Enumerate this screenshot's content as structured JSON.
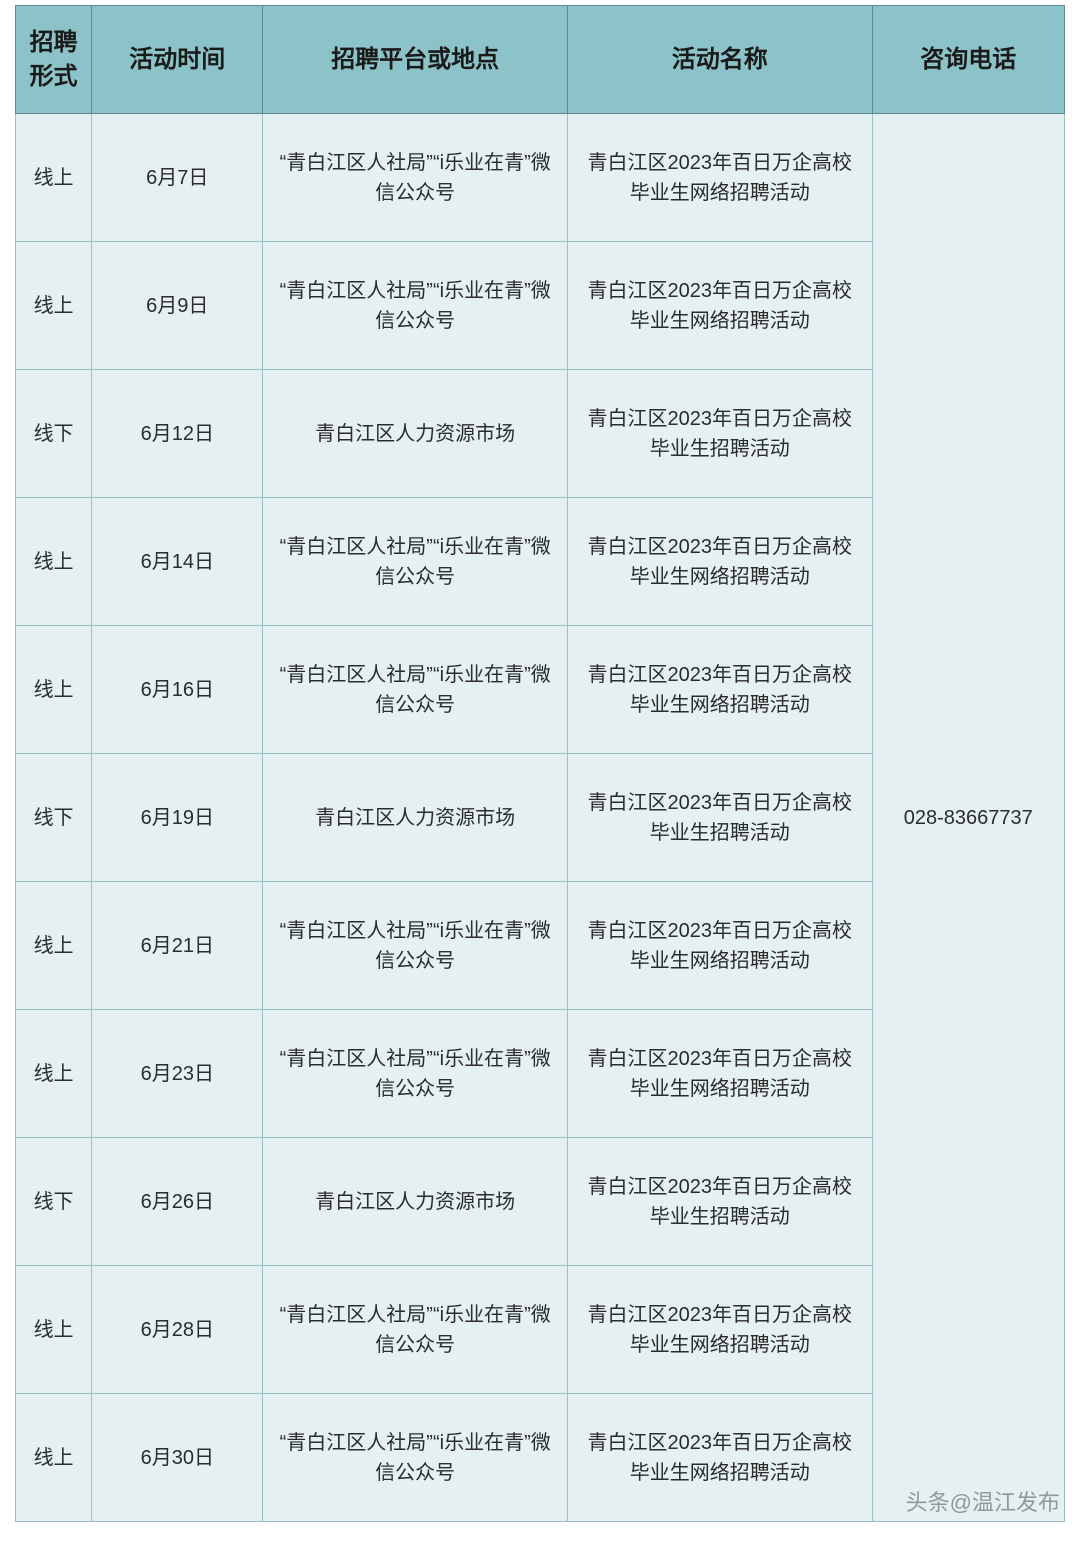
{
  "table": {
    "header_bg": "#8cc3c8",
    "row_bg": "#e4f0f1",
    "border_color": "#9cbfc3",
    "header_border_color": "#5a8a8e",
    "text_color": "#2c2c2c",
    "header_fontsize": 24,
    "body_fontsize": 20
  },
  "columns": {
    "type": "招聘形式",
    "date": "活动时间",
    "platform": "招聘平台或地点",
    "activity": "活动名称",
    "phone": "咨询电话"
  },
  "phone": "028-83667737",
  "rows": [
    {
      "type": "线上",
      "date": "6月7日",
      "platform": "“青白江区人社局”“i乐业在青”微信公众号",
      "activity": "青白江区2023年百日万企高校毕业生网络招聘活动"
    },
    {
      "type": "线上",
      "date": "6月9日",
      "platform": "“青白江区人社局”“i乐业在青”微信公众号",
      "activity": "青白江区2023年百日万企高校毕业生网络招聘活动"
    },
    {
      "type": "线下",
      "date": "6月12日",
      "platform": "青白江区人力资源市场",
      "activity": "青白江区2023年百日万企高校毕业生招聘活动"
    },
    {
      "type": "线上",
      "date": "6月14日",
      "platform": "“青白江区人社局”“i乐业在青”微信公众号",
      "activity": "青白江区2023年百日万企高校毕业生网络招聘活动"
    },
    {
      "type": "线上",
      "date": "6月16日",
      "platform": "“青白江区人社局”“i乐业在青”微信公众号",
      "activity": "青白江区2023年百日万企高校毕业生网络招聘活动"
    },
    {
      "type": "线下",
      "date": "6月19日",
      "platform": "青白江区人力资源市场",
      "activity": "青白江区2023年百日万企高校毕业生招聘活动"
    },
    {
      "type": "线上",
      "date": "6月21日",
      "platform": "“青白江区人社局”“i乐业在青”微信公众号",
      "activity": "青白江区2023年百日万企高校毕业生网络招聘活动"
    },
    {
      "type": "线上",
      "date": "6月23日",
      "platform": "“青白江区人社局”“i乐业在青”微信公众号",
      "activity": "青白江区2023年百日万企高校毕业生网络招聘活动"
    },
    {
      "type": "线下",
      "date": "6月26日",
      "platform": "青白江区人力资源市场",
      "activity": "青白江区2023年百日万企高校毕业生招聘活动"
    },
    {
      "type": "线上",
      "date": "6月28日",
      "platform": "“青白江区人社局”“i乐业在青”微信公众号",
      "activity": "青白江区2023年百日万企高校毕业生网络招聘活动"
    },
    {
      "type": "线上",
      "date": "6月30日",
      "platform": "“青白江区人社局”“i乐业在青”微信公众号",
      "activity": "青白江区2023年百日万企高校毕业生网络招聘活动"
    }
  ],
  "watermark": "头条@温江发布"
}
